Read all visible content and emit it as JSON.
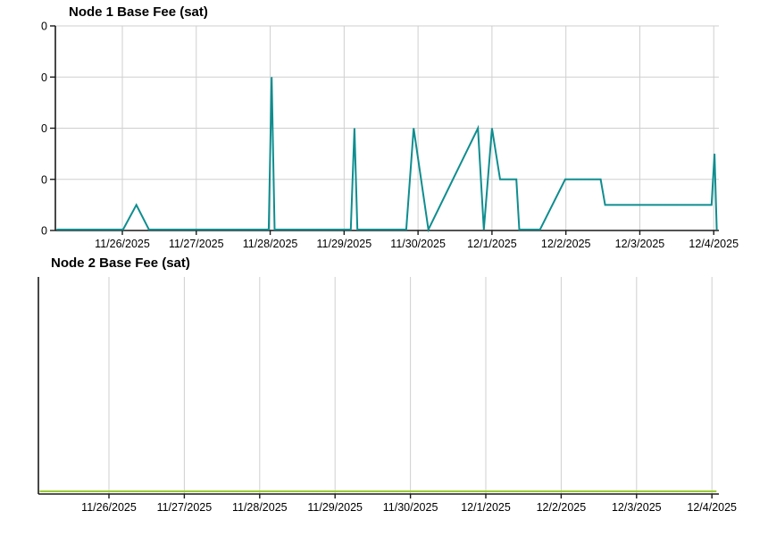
{
  "page": {
    "background": "#ffffff"
  },
  "colors": {
    "gridline": "#cfcfcf",
    "axis": "#1a1a1a",
    "label": "#000000",
    "node1_line": "#0f8d8f",
    "node2_line": "#9acd32"
  },
  "chart_data": [
    {
      "id": "node1",
      "type": "line",
      "title": "Node 1 Base Fee (sat)",
      "x_tick_labels": [
        "11/26/2025",
        "11/27/2025",
        "11/28/2025",
        "11/29/2025",
        "11/30/2025",
        "12/1/2025",
        "12/2/2025",
        "12/3/2025",
        "12/4/2025"
      ],
      "y_tick_labels": [
        "0",
        "0",
        "0",
        "0",
        "0"
      ],
      "xlabel": "",
      "ylabel": "",
      "x_unit": "days since 11/26/2025 tick",
      "y_unit": "gridline units (every y-axis label renders as 0)",
      "ylim": [
        0,
        4
      ],
      "grid": {
        "vertical": true,
        "horizontal": true
      },
      "line_color": "#0f8d8f",
      "legend": null,
      "series": [
        {
          "name": "Node 1 Base Fee",
          "points": [
            [
              -0.89,
              0
            ],
            [
              0.01,
              0
            ],
            [
              0.19,
              0.5
            ],
            [
              0.36,
              0
            ],
            [
              1.98,
              0
            ],
            [
              2.02,
              3
            ],
            [
              2.06,
              0
            ],
            [
              3.09,
              0
            ],
            [
              3.14,
              2
            ],
            [
              3.18,
              0
            ],
            [
              3.84,
              0
            ],
            [
              3.94,
              2
            ],
            [
              4.14,
              0
            ],
            [
              4.81,
              2
            ],
            [
              4.89,
              0
            ],
            [
              5.0,
              2
            ],
            [
              5.11,
              1
            ],
            [
              5.33,
              1
            ],
            [
              5.37,
              0
            ],
            [
              5.65,
              0
            ],
            [
              5.99,
              1
            ],
            [
              6.47,
              1
            ],
            [
              6.53,
              0.5
            ],
            [
              7.97,
              0.5
            ],
            [
              8.01,
              1.5
            ],
            [
              8.04,
              0
            ]
          ]
        }
      ]
    },
    {
      "id": "node2",
      "type": "line",
      "title": "Node 2 Base Fee (sat)",
      "x_tick_labels": [
        "11/26/2025",
        "11/27/2025",
        "11/28/2025",
        "11/29/2025",
        "11/30/2025",
        "12/1/2025",
        "12/2/2025",
        "12/3/2025",
        "12/4/2025"
      ],
      "y_tick_labels": [],
      "xlabel": "",
      "ylabel": "",
      "x_unit": "days since 11/26/2025 tick",
      "y_unit": "flat at 0 across full range",
      "ylim": [
        0,
        4
      ],
      "grid": {
        "vertical": true,
        "horizontal": false
      },
      "line_color": "#9acd32",
      "legend": null,
      "series": [
        {
          "name": "Node 2 Base Fee",
          "points": [
            [
              -0.92,
              0
            ],
            [
              8.06,
              0
            ]
          ]
        }
      ]
    }
  ]
}
